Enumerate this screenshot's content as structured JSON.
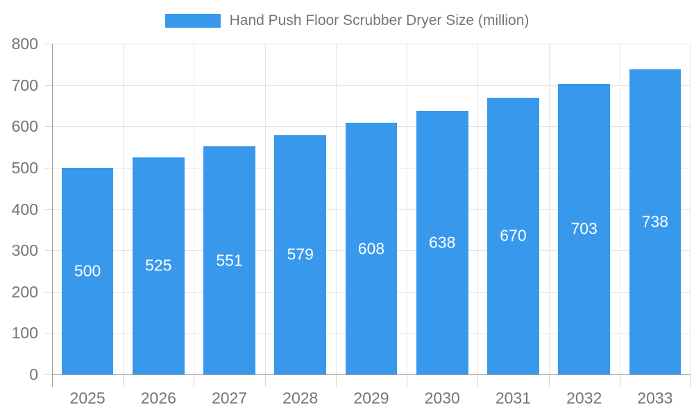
{
  "chart_data": {
    "type": "bar",
    "title": "Hand Push Floor Scrubber Dryer Size (million)",
    "series_name": "Hand Push Floor Scrubber Dryer Size (million)",
    "categories": [
      "2025",
      "2026",
      "2027",
      "2028",
      "2029",
      "2030",
      "2031",
      "2032",
      "2033"
    ],
    "values": [
      500,
      525,
      551,
      579,
      608,
      638,
      670,
      703,
      738
    ],
    "yticks": [
      0,
      100,
      200,
      300,
      400,
      500,
      600,
      700,
      800
    ],
    "ylim": [
      0,
      800
    ],
    "xlabel": "",
    "ylabel": "",
    "grid": true,
    "legend_position": "top",
    "value_labels": "centered-inside-bars",
    "colors": {
      "bar": "#3899EC",
      "axis": "#9E9E9E",
      "grid": "#E4E4E4",
      "tick": "#D4D4D4",
      "text": "#757575",
      "value_label": "#FFFFFF"
    }
  }
}
